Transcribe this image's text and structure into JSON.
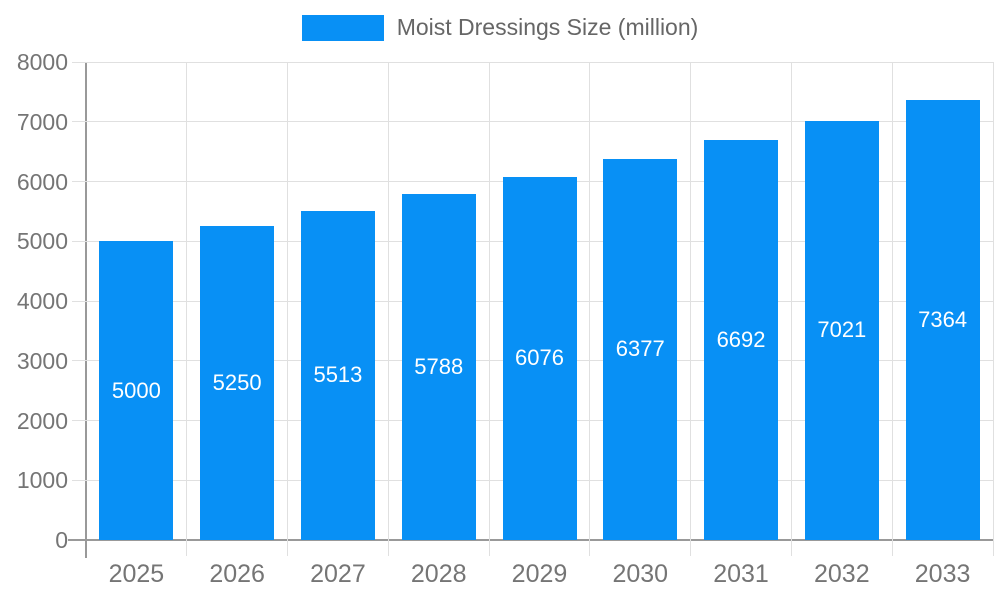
{
  "legend": {
    "label": "Moist Dressings Size (million)"
  },
  "colors": {
    "bar": "#0890f5",
    "grid": "#e0e0e0",
    "axis": "#999999",
    "axis_label": "#757575",
    "legend_text": "#666666",
    "bar_label": "#ffffff",
    "background": "#ffffff"
  },
  "chart_data": {
    "type": "bar",
    "title": "",
    "categories": [
      "2025",
      "2026",
      "2027",
      "2028",
      "2029",
      "2030",
      "2031",
      "2032",
      "2033"
    ],
    "series": [
      {
        "name": "Moist Dressings Size (million)",
        "values": [
          5000,
          5250,
          5513,
          5788,
          6076,
          6377,
          6692,
          7021,
          7364
        ]
      }
    ],
    "xlabel": "",
    "ylabel": "",
    "ylim": [
      0,
      8000
    ],
    "yticks": [
      0,
      1000,
      2000,
      3000,
      4000,
      5000,
      6000,
      7000,
      8000
    ],
    "grid": true,
    "legend_position": "top-center",
    "bar_value_labels": "inside-center"
  }
}
